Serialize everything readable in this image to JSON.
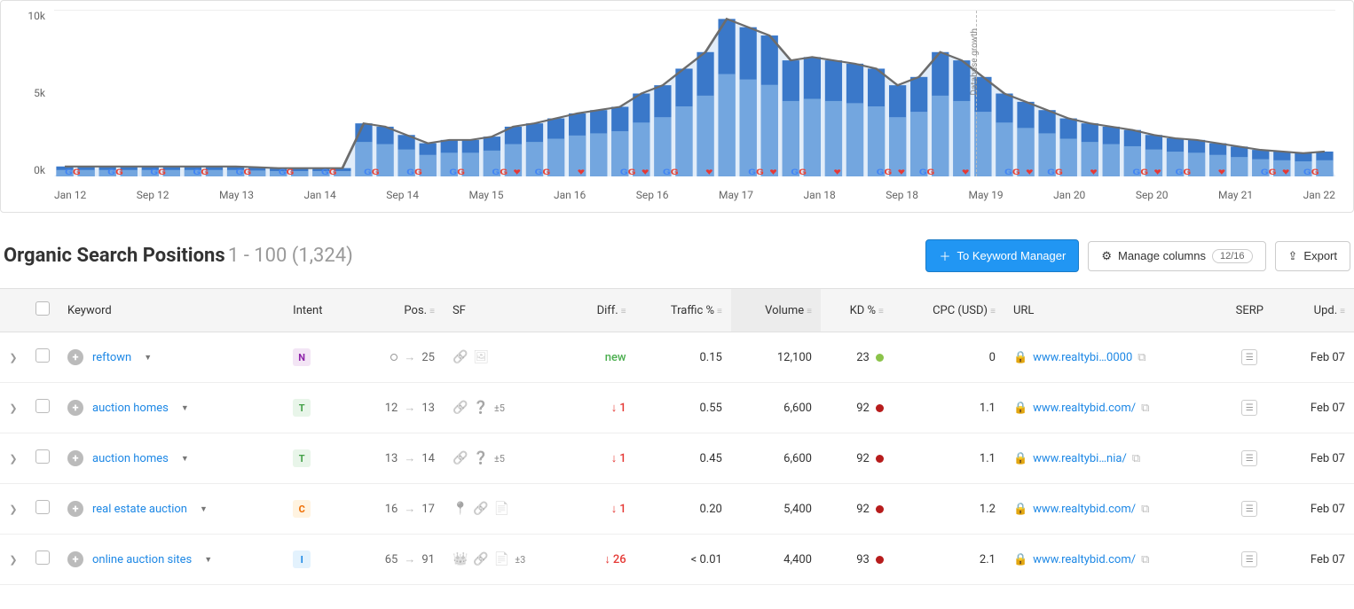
{
  "chart": {
    "ylabels": [
      "10k",
      "5k",
      "0k"
    ],
    "ymax": 10000,
    "xlabels": [
      "Jan 12",
      "Sep 12",
      "May 13",
      "Jan 14",
      "Sep 14",
      "May 15",
      "Jan 16",
      "Sep 16",
      "May 17",
      "Jan 18",
      "Sep 18",
      "May 19",
      "Jan 20",
      "Sep 20",
      "May 21",
      "Jan 22"
    ],
    "note": "Database growth",
    "series_color_dark": "#3a78c9",
    "series_color_light": "#8bb9e8",
    "line_color": "#6c6c6c",
    "values": [
      600,
      600,
      600,
      600,
      600,
      600,
      600,
      600,
      600,
      550,
      500,
      500,
      500,
      500,
      3200,
      3000,
      2500,
      2000,
      2200,
      2200,
      2400,
      3000,
      3200,
      3500,
      3800,
      4000,
      4200,
      5000,
      5500,
      6500,
      7500,
      9500,
      9000,
      8500,
      7000,
      7200,
      7000,
      6800,
      6500,
      5500,
      6000,
      7500,
      7000,
      6000,
      5000,
      4500,
      4000,
      3500,
      3200,
      3000,
      2800,
      2500,
      2300,
      2200,
      2000,
      1800,
      1600,
      1500,
      1400,
      1500
    ],
    "marker_count": 60
  },
  "section": {
    "title": "Organic Search Positions",
    "range": "1 - 100 (1,324)",
    "btn_keyword_manager": "To Keyword Manager",
    "btn_manage_columns": "Manage columns",
    "columns_badge": "12/16",
    "btn_export": "Export"
  },
  "columns": {
    "keyword": "Keyword",
    "intent": "Intent",
    "pos": "Pos.",
    "sf": "SF",
    "diff": "Diff.",
    "traffic": "Traffic %",
    "volume": "Volume",
    "kd": "KD %",
    "cpc": "CPC (USD)",
    "url": "URL",
    "serp": "SERP",
    "upd": "Upd."
  },
  "rows": [
    {
      "keyword": "reftown",
      "intent": "N",
      "pos_from": "",
      "pos_to": "25",
      "pos_dot": true,
      "sf_icons": [
        "link",
        "image"
      ],
      "sf_count": "",
      "diff_type": "new",
      "diff_value": "new",
      "traffic": "0.15",
      "volume": "12,100",
      "kd": "23",
      "kd_color": "#8bc34a",
      "cpc": "0",
      "url": "www.realtybi…0000",
      "upd": "Feb 07"
    },
    {
      "keyword": "auction homes",
      "intent": "T",
      "pos_from": "12",
      "pos_to": "13",
      "pos_dot": false,
      "sf_icons": [
        "link",
        "question"
      ],
      "sf_count": "±5",
      "diff_type": "down",
      "diff_value": "1",
      "traffic": "0.55",
      "volume": "6,600",
      "kd": "92",
      "kd_color": "#b71c1c",
      "cpc": "1.1",
      "url": "www.realtybid.com/",
      "upd": "Feb 07"
    },
    {
      "keyword": "auction homes",
      "intent": "T",
      "pos_from": "13",
      "pos_to": "14",
      "pos_dot": false,
      "sf_icons": [
        "link",
        "question"
      ],
      "sf_count": "±5",
      "diff_type": "down",
      "diff_value": "1",
      "traffic": "0.45",
      "volume": "6,600",
      "kd": "92",
      "kd_color": "#b71c1c",
      "cpc": "1.1",
      "url": "www.realtybi…nia/",
      "upd": "Feb 07"
    },
    {
      "keyword": "real estate auction",
      "intent": "C",
      "pos_from": "16",
      "pos_to": "17",
      "pos_dot": false,
      "sf_icons": [
        "pin",
        "link",
        "doc"
      ],
      "sf_count": "",
      "diff_type": "down",
      "diff_value": "1",
      "traffic": "0.20",
      "volume": "5,400",
      "kd": "92",
      "kd_color": "#b71c1c",
      "cpc": "1.2",
      "url": "www.realtybid.com/",
      "upd": "Feb 07"
    },
    {
      "keyword": "online auction sites",
      "intent": "I",
      "pos_from": "65",
      "pos_to": "91",
      "pos_dot": false,
      "sf_icons": [
        "crown",
        "link",
        "doc"
      ],
      "sf_count": "±3",
      "diff_type": "down",
      "diff_value": "26",
      "traffic": "< 0.01",
      "volume": "4,400",
      "kd": "93",
      "kd_color": "#b71c1c",
      "cpc": "2.1",
      "url": "www.realtybid.com/",
      "upd": "Feb 07"
    }
  ]
}
